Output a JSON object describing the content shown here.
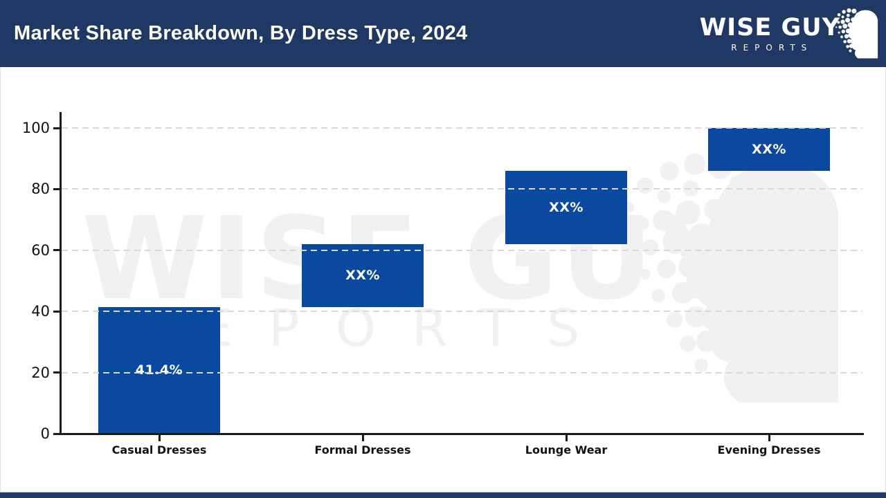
{
  "header": {
    "title": "Market Share Breakdown, By Dress Type, 2024",
    "bg_color": "#1f3864",
    "logo": {
      "line1": "WISE GUY",
      "line2": "REPORTS"
    }
  },
  "watermark": {
    "line1": "WISE GUY",
    "line2": "REPORTS"
  },
  "footer": {
    "bg_color": "#1f3864"
  },
  "chart_data": {
    "type": "bar",
    "subtype": "waterfall",
    "title": "Market Share Breakdown, By Dress Type, 2024",
    "xlabel": "",
    "ylabel": "",
    "categories": [
      "Casual Dresses",
      "Formal Dresses",
      "Lounge Wear",
      "Evening Dresses"
    ],
    "segments": [
      {
        "category": "Casual Dresses",
        "start": 0,
        "end": 41.4,
        "label": "41.4%"
      },
      {
        "category": "Formal Dresses",
        "start": 41.4,
        "end": 62,
        "label": "XX%"
      },
      {
        "category": "Lounge Wear",
        "start": 62,
        "end": 86,
        "label": "XX%"
      },
      {
        "category": "Evening Dresses",
        "start": 86,
        "end": 100,
        "label": "XX%"
      }
    ],
    "y_ticks": [
      0,
      20,
      40,
      60,
      80,
      100
    ],
    "ylim": [
      0,
      105
    ],
    "grid": "horizontal-dashed",
    "legend": "none",
    "bar_color": "#0b49a1",
    "bar_label_color": "#ffffff",
    "gridline_color": "#d9d9d9",
    "axis_color": "#1a1a1a"
  }
}
